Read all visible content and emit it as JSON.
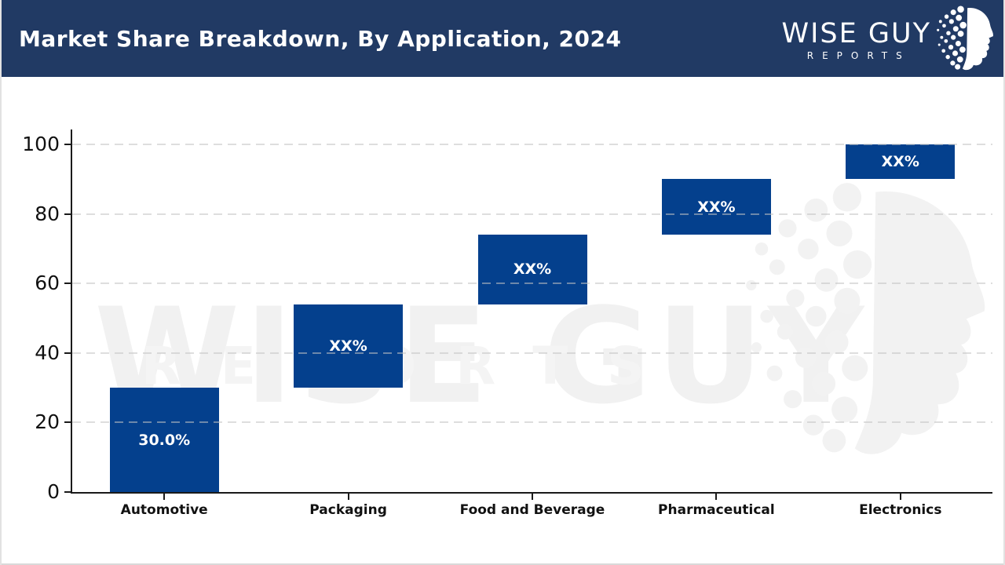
{
  "header": {
    "title": "Market Share Breakdown, By Application, 2024",
    "bg_color": "#213a64",
    "logo": {
      "line1": "WISE GUY",
      "line2": "REPORTS"
    }
  },
  "watermark": {
    "line1": "WISE GUY",
    "line2": "REPORTS"
  },
  "chart_data": {
    "type": "bar",
    "subtype": "waterfall",
    "title": "Market Share Breakdown, By Application, 2024",
    "categories": [
      "Automotive",
      "Packaging",
      "Food and Beverage",
      "Pharmaceutical",
      "Electronics"
    ],
    "segments": [
      {
        "category": "Automotive",
        "start": 0,
        "end": 30,
        "label": "30.0%"
      },
      {
        "category": "Packaging",
        "start": 30,
        "end": 54,
        "label": "XX%"
      },
      {
        "category": "Food and Beverage",
        "start": 54,
        "end": 74,
        "label": "XX%"
      },
      {
        "category": "Pharmaceutical",
        "start": 74,
        "end": 90,
        "label": "XX%"
      },
      {
        "category": "Electronics",
        "start": 90,
        "end": 100,
        "label": "XX%"
      }
    ],
    "y_ticks": [
      0,
      20,
      40,
      60,
      80,
      100
    ],
    "ylim": [
      0,
      105
    ],
    "xlabel": "",
    "ylabel": "",
    "grid": true,
    "legend": false,
    "bar_color": "#04408d",
    "value_label_color": "#ffffff",
    "axis_color": "#1a1a1a"
  }
}
